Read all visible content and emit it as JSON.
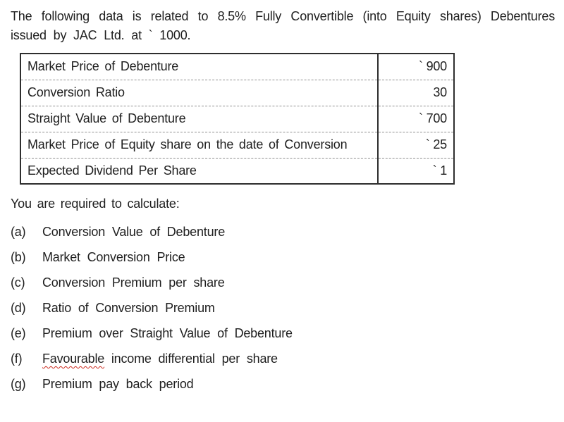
{
  "currency_mark": "`",
  "intro": {
    "text": "The following data is related to 8.5% Fully Convertible (into Equity shares) Debentures issued by JAC Ltd. at ` 1000."
  },
  "table": {
    "rows": [
      {
        "label": "Market Price of Debenture",
        "value": "` 900"
      },
      {
        "label": "Conversion Ratio",
        "value": "30"
      },
      {
        "label": "Straight Value of Debenture",
        "value": "` 700"
      },
      {
        "label": "Market Price of Equity share on the date of Conversion",
        "value": "` 25"
      },
      {
        "label": "Expected Dividend Per Share",
        "value": "` 1"
      }
    ]
  },
  "question": {
    "prompt": "You are required to calculate:",
    "items": [
      {
        "label": "(a)",
        "text": "Conversion Value of Debenture"
      },
      {
        "label": "(b)",
        "text": "Market Conversion Price"
      },
      {
        "label": "(c)",
        "text": "Conversion Premium per share"
      },
      {
        "label": "(d)",
        "text": "Ratio of Conversion Premium"
      },
      {
        "label": "(e)",
        "text": "Premium over Straight Value of Debenture"
      },
      {
        "label": "(f)",
        "word": "Favourable",
        "rest": " income differential per share"
      },
      {
        "label": "(g)",
        "text": "Premium pay back period"
      }
    ]
  },
  "colors": {
    "text": "#1e1e1e",
    "table_border": "#2e2e2e",
    "row_separator": "#8f8f8f",
    "squiggle_red": "#cc2a1e"
  }
}
